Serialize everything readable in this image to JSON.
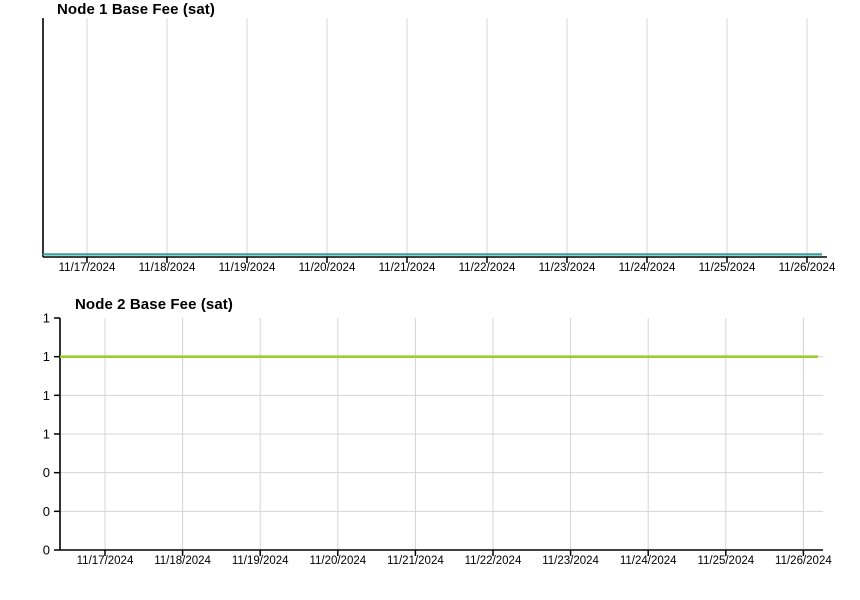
{
  "colors": {
    "node1_line": "#3aa0a0",
    "node2_line": "#9acd32",
    "gridline": "#d4d4d4",
    "axis": "#000000",
    "title_text": "#000000",
    "tick_label_text": "#000000"
  },
  "chart_data": [
    {
      "type": "line",
      "title": "Node 1 Base Fee (sat)",
      "xlabel": "",
      "ylabel": "",
      "categories": [
        "11/17/2024",
        "11/18/2024",
        "11/19/2024",
        "11/20/2024",
        "11/21/2024",
        "11/22/2024",
        "11/23/2024",
        "11/24/2024",
        "11/25/2024",
        "11/26/2024"
      ],
      "series": [
        {
          "name": "Node 1 Base Fee (sat)",
          "values": [
            0,
            0,
            0,
            0,
            0,
            0,
            0,
            0,
            0,
            0
          ],
          "color": "#3aa0a0"
        }
      ],
      "y_ticks": [],
      "y_tick_labels": [],
      "ylim": null,
      "grid": "vertical-only",
      "legend": "none"
    },
    {
      "type": "line",
      "title": "Node 2 Base Fee (sat)",
      "xlabel": "",
      "ylabel": "",
      "categories": [
        "11/17/2024",
        "11/18/2024",
        "11/19/2024",
        "11/20/2024",
        "11/21/2024",
        "11/22/2024",
        "11/23/2024",
        "11/24/2024",
        "11/25/2024",
        "11/26/2024"
      ],
      "series": [
        {
          "name": "Node 2 Base Fee (sat)",
          "values": [
            1,
            1,
            1,
            1,
            1,
            1,
            1,
            1,
            1,
            1
          ],
          "color": "#9acd32"
        }
      ],
      "y_ticks": [
        1.2,
        1.0,
        0.8,
        0.6,
        0.4,
        0.2,
        0
      ],
      "y_tick_labels": [
        "1",
        "1",
        "1",
        "1",
        "0",
        "0",
        "0"
      ],
      "ylim": [
        0,
        1.2
      ],
      "grid": "both",
      "legend": "none"
    }
  ]
}
